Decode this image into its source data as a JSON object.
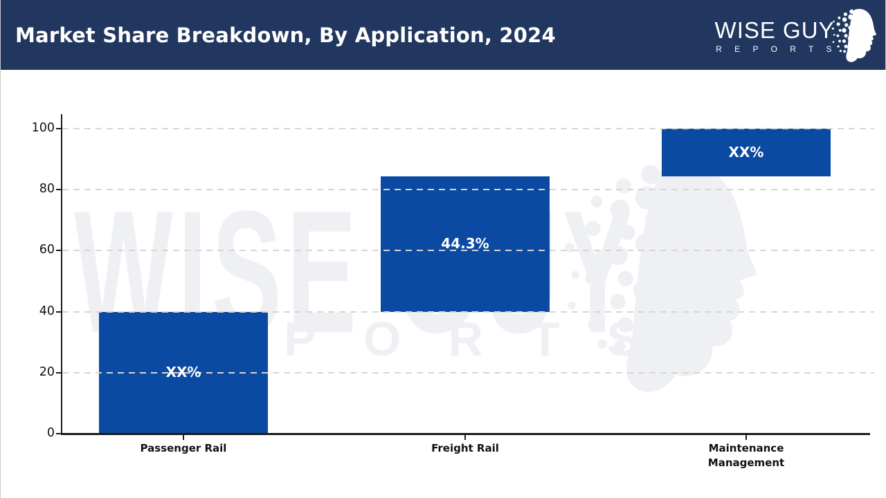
{
  "header": {
    "title": "Market Share Breakdown, By Application, 2024",
    "logo": {
      "line1": "WISE GUY",
      "line2": "R E P O R T S"
    }
  },
  "watermark": {
    "line1": "WISE GUY",
    "line2": "REPORTS"
  },
  "colors": {
    "header_navy": "#22375f",
    "bar_blue": "#0b4aa2",
    "grid_gray": "#d6d6d6"
  },
  "chart_data": {
    "type": "bar",
    "subtype": "stacked-waterfall",
    "title": "Market Share Breakdown, By Application, 2024",
    "categories": [
      "Passenger Rail",
      "Freight Rail",
      "Maintenance Management"
    ],
    "segments": [
      {
        "category": "Passenger Rail",
        "start": 0,
        "end": 40,
        "label": "XX%"
      },
      {
        "category": "Freight Rail",
        "start": 40,
        "end": 84.3,
        "label": "44.3%"
      },
      {
        "category": "Maintenance Management",
        "start": 84.3,
        "end": 100,
        "label": "XX%"
      }
    ],
    "ylim": [
      0,
      100
    ],
    "yticks": [
      0,
      20,
      40,
      60,
      80,
      100
    ],
    "xlabel": "",
    "ylabel": "",
    "grid": "horizontal-dashed",
    "legend": "none"
  }
}
